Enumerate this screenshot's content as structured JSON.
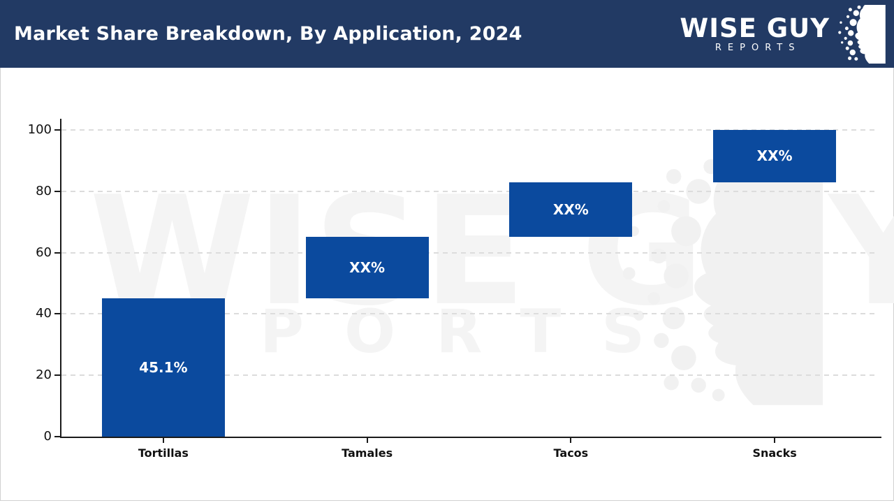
{
  "header": {
    "title": "Market Share Breakdown, By Application, 2024",
    "bg_color": "#223a64",
    "logo": {
      "line1": "WISE GUY",
      "line2": "REPORTS"
    }
  },
  "watermark": {
    "line1": "WISE GUY",
    "line2": "PORTS",
    "color": "#f4f4f4"
  },
  "chart_data": {
    "type": "bar",
    "subtype": "waterfall",
    "title": "Market Share Breakdown, By Application, 2024",
    "categories": [
      "Tortillas",
      "Tamales",
      "Tacos",
      "Snacks"
    ],
    "segments": [
      [
        0,
        45.1
      ],
      [
        45.1,
        65.2
      ],
      [
        65.2,
        83.0
      ],
      [
        83.0,
        100.0
      ]
    ],
    "labels": [
      "45.1%",
      "XX%",
      "XX%",
      "XX%"
    ],
    "bar_color": "#0b4a9e",
    "label_color": "#ffffff",
    "ylim": [
      0,
      100
    ],
    "yticks": [
      0,
      20,
      40,
      60,
      80,
      100
    ],
    "grid": "horizontal-dashed",
    "grid_color": "#dcdcdc",
    "xlabel": "",
    "ylabel": ""
  }
}
